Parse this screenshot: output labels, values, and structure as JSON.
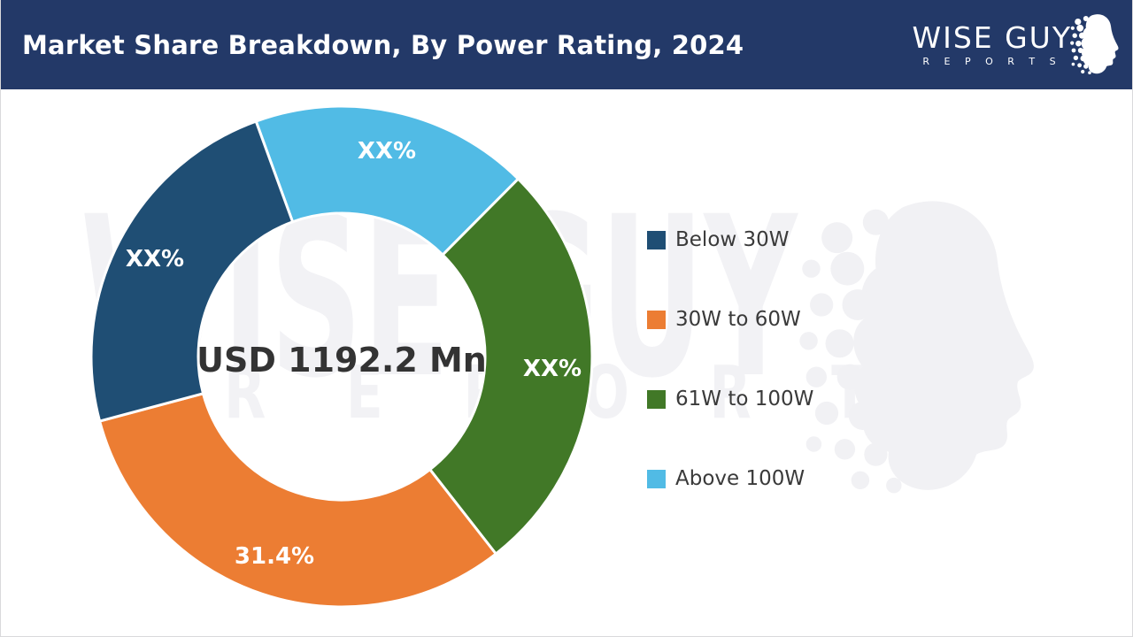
{
  "header": {
    "title": "Market Share Breakdown, By Power Rating, 2024",
    "logo": {
      "line1": "WISE GUY",
      "line2": "R E P O R T S"
    }
  },
  "watermark": {
    "line1": "WISE GUY",
    "line2": "R E P O R T S"
  },
  "chart_data": {
    "type": "donut",
    "title": "Market Share Breakdown, By Power Rating, 2024",
    "center_label": "USD 1192.2 Mn",
    "start_angle_deg": -20,
    "segments": [
      {
        "name": "Above 100W",
        "value_pct": 18.0,
        "label": "XX%",
        "color": "#51BBE5"
      },
      {
        "name": "61W to 100W",
        "value_pct": 27.0,
        "label": "XX%",
        "color": "#417827"
      },
      {
        "name": "30W to 60W",
        "value_pct": 31.4,
        "label": "31.4%",
        "color": "#EC7D33"
      },
      {
        "name": "Below 30W",
        "value_pct": 23.6,
        "label": "XX%",
        "color": "#1F4E74"
      }
    ],
    "legend_order": [
      "Below 30W",
      "30W to 60W",
      "61W to 100W",
      "Above 100W"
    ],
    "legend_position": "right"
  },
  "colors": {
    "header_bg": "#233968",
    "center_text": "#333333",
    "page_border": "#D9D9DB",
    "watermark": "#F2F2F5"
  }
}
